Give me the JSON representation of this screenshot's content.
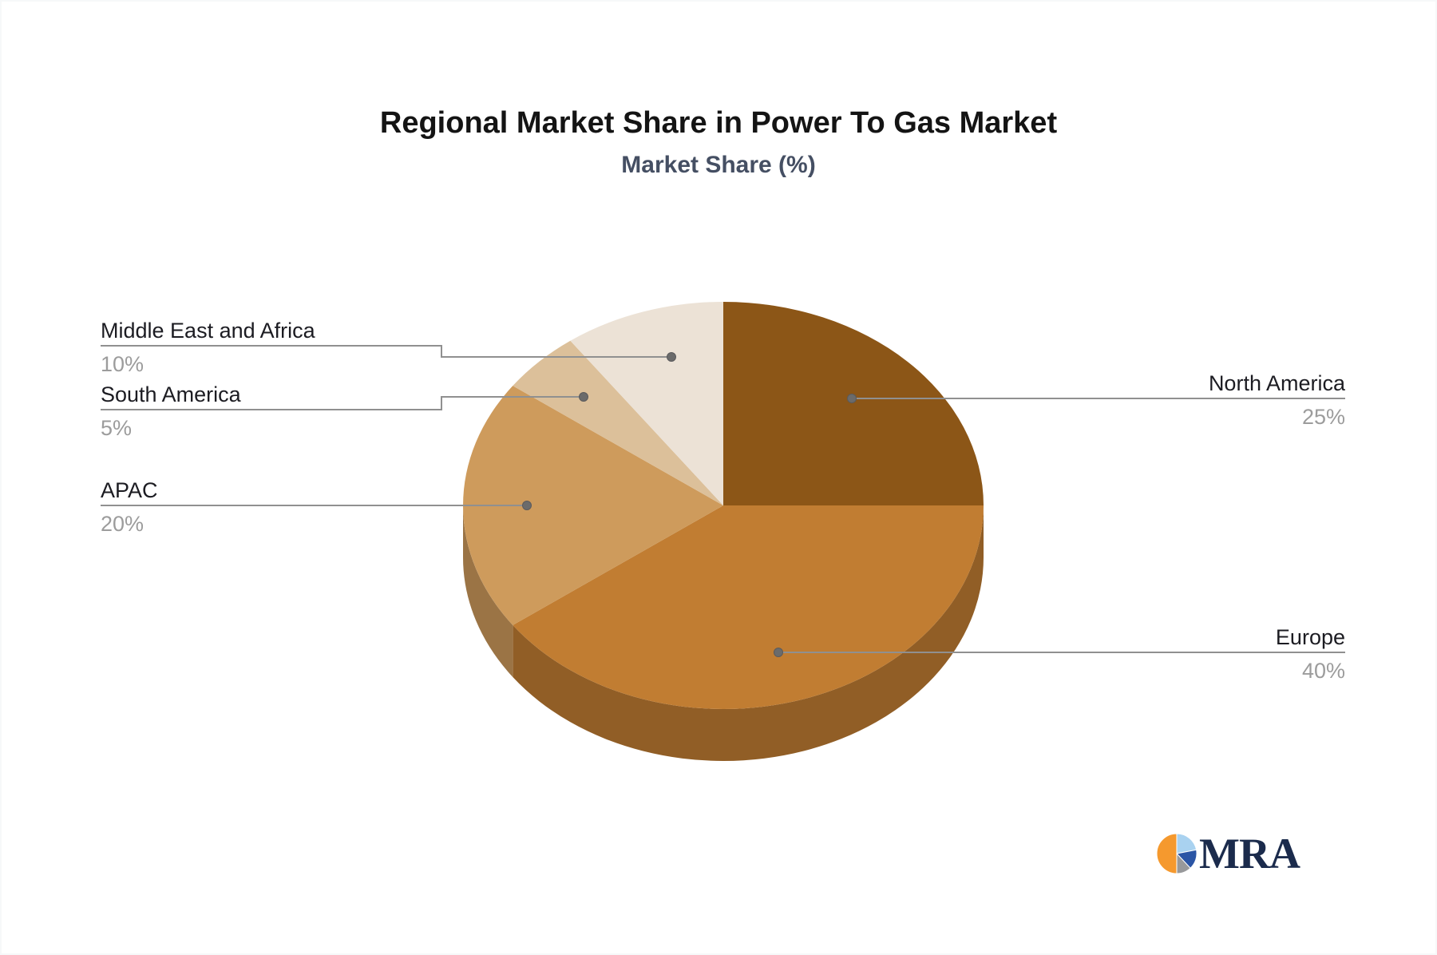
{
  "title": "Regional Market Share in Power To Gas Market",
  "subtitle": "Market Share (%)",
  "chart_data": {
    "type": "pie",
    "style": "3d",
    "title": "Regional Market Share in Power To Gas Market",
    "subtitle": "Market Share (%)",
    "unit": "%",
    "start_angle_deg": -90,
    "direction": "clockwise",
    "series": [
      {
        "name": "North America",
        "value": 25,
        "label": "25%",
        "color": "#8C5617"
      },
      {
        "name": "Europe",
        "value": 40,
        "label": "40%",
        "color": "#C17D32"
      },
      {
        "name": "APAC",
        "value": 20,
        "label": "20%",
        "color": "#CE9B5C"
      },
      {
        "name": "South America",
        "value": 5,
        "label": "5%",
        "color": "#DCC09A"
      },
      {
        "name": "Middle East and Africa",
        "value": 10,
        "label": "10%",
        "color": "#ECE2D6"
      }
    ],
    "legend_position": "none",
    "grid": false,
    "leader_line_color": "#909090",
    "leader_dot_color": "#6b6b6b",
    "label_name_color": "#1c1c22",
    "label_pct_color": "#9c9c9c",
    "title_color": "#141414",
    "subtitle_color": "#454f63"
  },
  "logo": {
    "text": "MRA",
    "text_color": "#1b2b4c",
    "icon": "pie-chart-icon",
    "icon_colors": {
      "orange": "#F5992E",
      "light_blue": "#A9D2F0",
      "dark_blue": "#2B55A5",
      "gray": "#98999B"
    }
  }
}
